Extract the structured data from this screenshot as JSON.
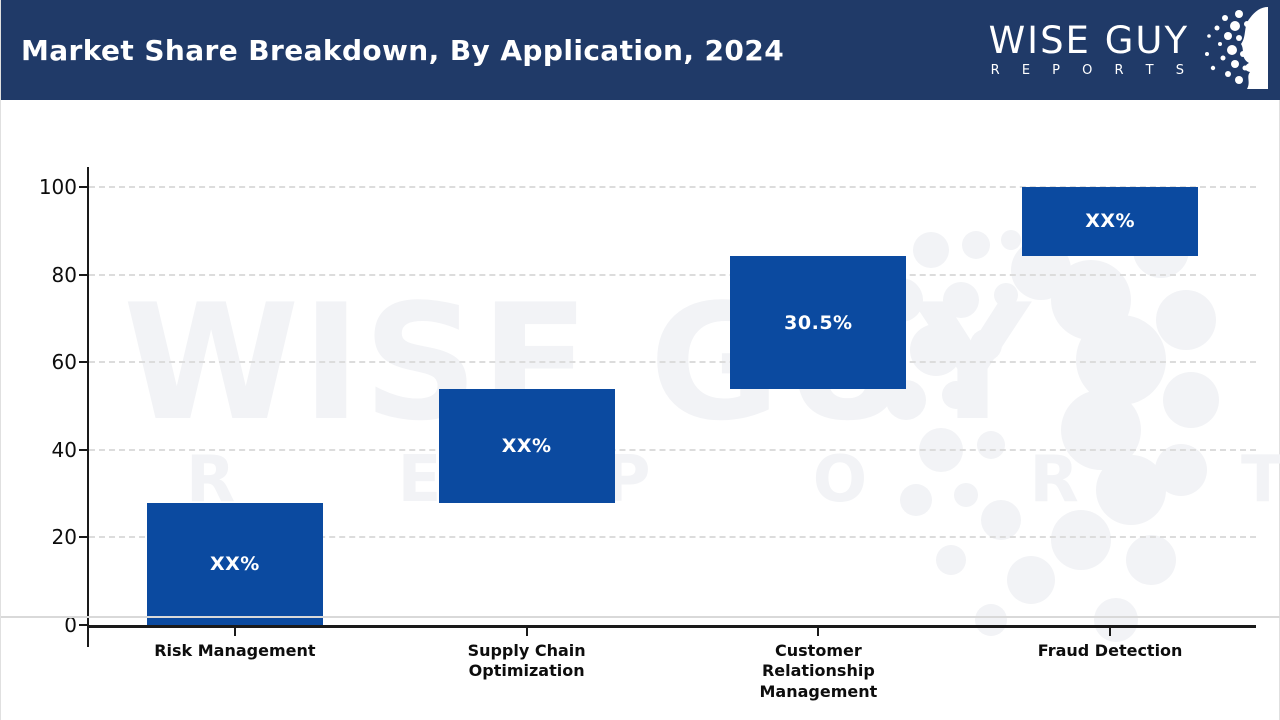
{
  "header": {
    "title": "Market Share Breakdown, By Application, 2024",
    "logo": {
      "line1": "WISE GUY",
      "line2": "R E P O R T S"
    }
  },
  "watermark": {
    "line1": "WISE GUY",
    "line2": "R E P O R T S"
  },
  "chart_data": {
    "type": "bar",
    "subtype": "waterfall-floating-bars",
    "title": "Market Share Breakdown, By Application, 2024",
    "categories": [
      "Risk Management",
      "Supply Chain Optimization",
      "Customer Relationship Management",
      "Fraud Detection"
    ],
    "categories_display": [
      [
        "Risk Management"
      ],
      [
        "Supply Chain",
        "Optimization"
      ],
      [
        "Customer",
        "Relationship",
        "Management"
      ],
      [
        "Fraud Detection"
      ]
    ],
    "segments": [
      {
        "category": "Risk Management",
        "start": 0,
        "end": 27.8,
        "value": 27.8,
        "label": "XX%"
      },
      {
        "category": "Supply Chain Optimization",
        "start": 27.8,
        "end": 53.8,
        "value": 26.0,
        "label": "XX%"
      },
      {
        "category": "Customer Relationship Management",
        "start": 53.8,
        "end": 84.3,
        "value": 30.5,
        "label": "30.5%"
      },
      {
        "category": "Fraud Detection",
        "start": 84.3,
        "end": 100,
        "value": 15.7,
        "label": "XX%"
      }
    ],
    "xlabel": "",
    "ylabel": "",
    "ylim": [
      0,
      100
    ],
    "yticks": [
      0,
      20,
      40,
      60,
      80,
      100
    ],
    "grid": "horizontal-dashed",
    "legend": "none",
    "bar_color": "#0b4aa0",
    "bar_label_color": "#ffffff"
  },
  "colors": {
    "header_bg": "#203a68",
    "bar": "#0b4aa0",
    "grid": "#dcdcdc",
    "axis": "#1a1a1a",
    "watermark": "#f2f3f6"
  }
}
